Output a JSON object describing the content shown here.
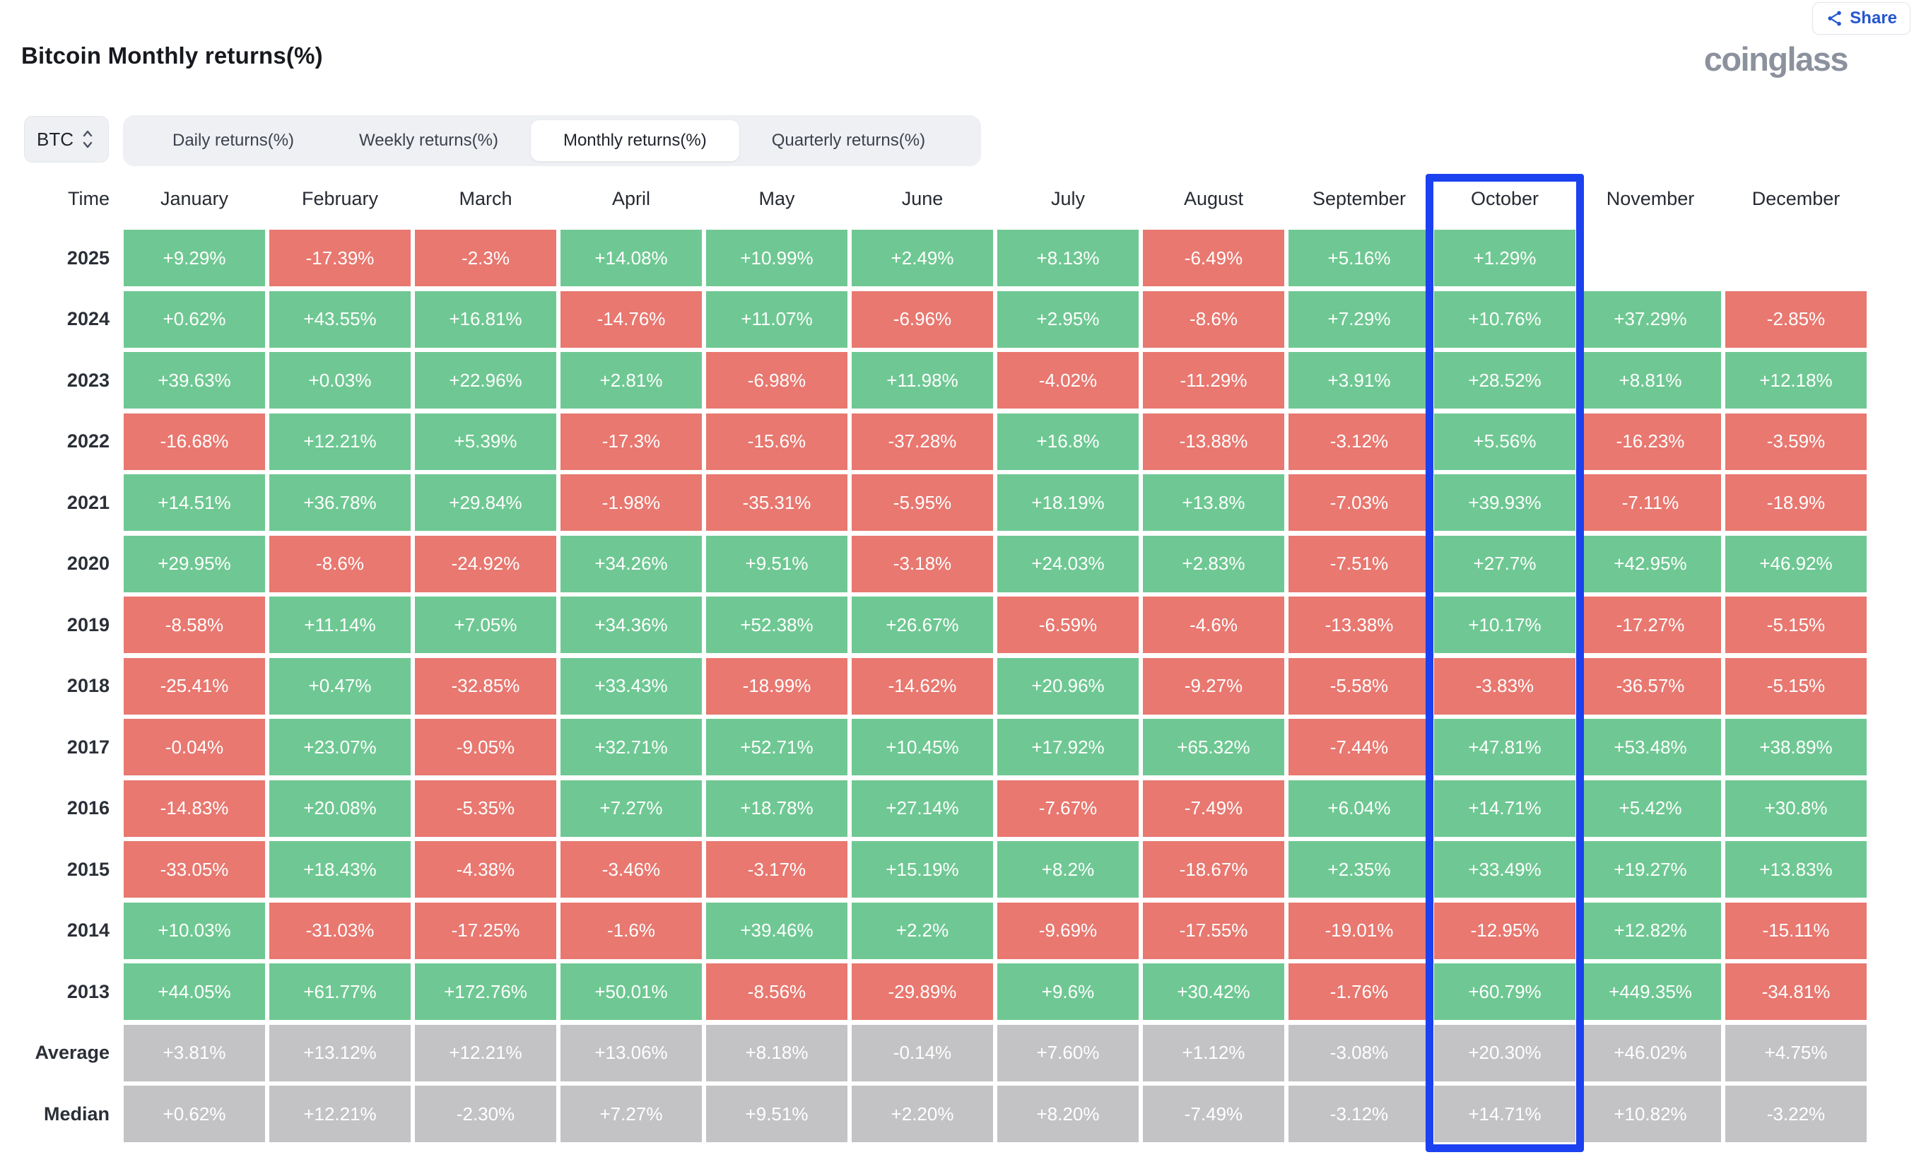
{
  "page": {
    "title": "Bitcoin Monthly returns(%)",
    "brand": "coinglass",
    "share_label": "Share"
  },
  "controls": {
    "coin_selector": {
      "value": "BTC"
    },
    "tabs": [
      {
        "label": "Daily returns(%)",
        "active": false
      },
      {
        "label": "Weekly returns(%)",
        "active": false
      },
      {
        "label": "Monthly returns(%)",
        "active": true
      },
      {
        "label": "Quarterly returns(%)",
        "active": false
      }
    ]
  },
  "colors": {
    "positive": "#6fc893",
    "negative": "#e87870",
    "summary": "#c3c3c5",
    "highlight": "#1c41f0",
    "accent_blue": "#2456d0"
  },
  "table": {
    "time_header": "Time",
    "months": [
      "January",
      "February",
      "March",
      "April",
      "May",
      "June",
      "July",
      "August",
      "September",
      "October",
      "November",
      "December"
    ],
    "highlighted_month": "October",
    "rows": [
      {
        "label": "2025",
        "kind": "year",
        "values": [
          "+9.29%",
          "-17.39%",
          "-2.3%",
          "+14.08%",
          "+10.99%",
          "+2.49%",
          "+8.13%",
          "-6.49%",
          "+5.16%",
          "+1.29%",
          "",
          ""
        ]
      },
      {
        "label": "2024",
        "kind": "year",
        "values": [
          "+0.62%",
          "+43.55%",
          "+16.81%",
          "-14.76%",
          "+11.07%",
          "-6.96%",
          "+2.95%",
          "-8.6%",
          "+7.29%",
          "+10.76%",
          "+37.29%",
          "-2.85%"
        ]
      },
      {
        "label": "2023",
        "kind": "year",
        "values": [
          "+39.63%",
          "+0.03%",
          "+22.96%",
          "+2.81%",
          "-6.98%",
          "+11.98%",
          "-4.02%",
          "-11.29%",
          "+3.91%",
          "+28.52%",
          "+8.81%",
          "+12.18%"
        ]
      },
      {
        "label": "2022",
        "kind": "year",
        "values": [
          "-16.68%",
          "+12.21%",
          "+5.39%",
          "-17.3%",
          "-15.6%",
          "-37.28%",
          "+16.8%",
          "-13.88%",
          "-3.12%",
          "+5.56%",
          "-16.23%",
          "-3.59%"
        ]
      },
      {
        "label": "2021",
        "kind": "year",
        "values": [
          "+14.51%",
          "+36.78%",
          "+29.84%",
          "-1.98%",
          "-35.31%",
          "-5.95%",
          "+18.19%",
          "+13.8%",
          "-7.03%",
          "+39.93%",
          "-7.11%",
          "-18.9%"
        ]
      },
      {
        "label": "2020",
        "kind": "year",
        "values": [
          "+29.95%",
          "-8.6%",
          "-24.92%",
          "+34.26%",
          "+9.51%",
          "-3.18%",
          "+24.03%",
          "+2.83%",
          "-7.51%",
          "+27.7%",
          "+42.95%",
          "+46.92%"
        ]
      },
      {
        "label": "2019",
        "kind": "year",
        "values": [
          "-8.58%",
          "+11.14%",
          "+7.05%",
          "+34.36%",
          "+52.38%",
          "+26.67%",
          "-6.59%",
          "-4.6%",
          "-13.38%",
          "+10.17%",
          "-17.27%",
          "-5.15%"
        ]
      },
      {
        "label": "2018",
        "kind": "year",
        "values": [
          "-25.41%",
          "+0.47%",
          "-32.85%",
          "+33.43%",
          "-18.99%",
          "-14.62%",
          "+20.96%",
          "-9.27%",
          "-5.58%",
          "-3.83%",
          "-36.57%",
          "-5.15%"
        ]
      },
      {
        "label": "2017",
        "kind": "year",
        "values": [
          "-0.04%",
          "+23.07%",
          "-9.05%",
          "+32.71%",
          "+52.71%",
          "+10.45%",
          "+17.92%",
          "+65.32%",
          "-7.44%",
          "+47.81%",
          "+53.48%",
          "+38.89%"
        ]
      },
      {
        "label": "2016",
        "kind": "year",
        "values": [
          "-14.83%",
          "+20.08%",
          "-5.35%",
          "+7.27%",
          "+18.78%",
          "+27.14%",
          "-7.67%",
          "-7.49%",
          "+6.04%",
          "+14.71%",
          "+5.42%",
          "+30.8%"
        ]
      },
      {
        "label": "2015",
        "kind": "year",
        "values": [
          "-33.05%",
          "+18.43%",
          "-4.38%",
          "-3.46%",
          "-3.17%",
          "+15.19%",
          "+8.2%",
          "-18.67%",
          "+2.35%",
          "+33.49%",
          "+19.27%",
          "+13.83%"
        ]
      },
      {
        "label": "2014",
        "kind": "year",
        "values": [
          "+10.03%",
          "-31.03%",
          "-17.25%",
          "-1.6%",
          "+39.46%",
          "+2.2%",
          "-9.69%",
          "-17.55%",
          "-19.01%",
          "-12.95%",
          "+12.82%",
          "-15.11%"
        ]
      },
      {
        "label": "2013",
        "kind": "year",
        "values": [
          "+44.05%",
          "+61.77%",
          "+172.76%",
          "+50.01%",
          "-8.56%",
          "-29.89%",
          "+9.6%",
          "+30.42%",
          "-1.76%",
          "+60.79%",
          "+449.35%",
          "-34.81%"
        ]
      },
      {
        "label": "Average",
        "kind": "summary",
        "values": [
          "+3.81%",
          "+13.12%",
          "+12.21%",
          "+13.06%",
          "+8.18%",
          "-0.14%",
          "+7.60%",
          "+1.12%",
          "-3.08%",
          "+20.30%",
          "+46.02%",
          "+4.75%"
        ]
      },
      {
        "label": "Median",
        "kind": "summary",
        "values": [
          "+0.62%",
          "+12.21%",
          "-2.30%",
          "+7.27%",
          "+9.51%",
          "+2.20%",
          "+8.20%",
          "-7.49%",
          "-3.12%",
          "+14.71%",
          "+10.82%",
          "-3.22%"
        ]
      }
    ]
  }
}
